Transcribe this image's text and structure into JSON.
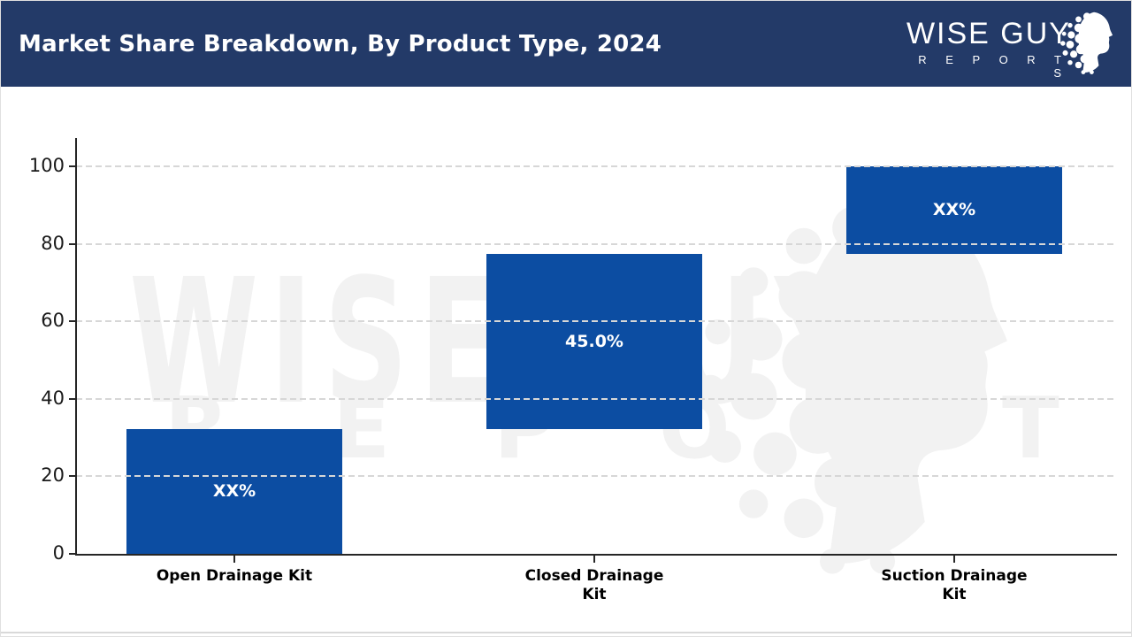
{
  "header": {
    "title": "Market Share Breakdown, By Product Type, 2024",
    "background": "#233a68",
    "title_color": "#ffffff",
    "logo": {
      "name": "WISE GUY",
      "sub": "R E P O R T S",
      "color": "#ffffff"
    }
  },
  "watermark": {
    "line1": "WISE GUY",
    "line2": "R E P O R T S",
    "color": "#f2f2f2"
  },
  "chart_data": {
    "type": "bar",
    "subtype": "waterfall-stacked",
    "title": "Market Share Breakdown, By Product Type, 2024",
    "xlabel": "",
    "ylabel": "",
    "ylim": [
      0,
      107
    ],
    "yticks": [
      0,
      20,
      40,
      60,
      80,
      100
    ],
    "grid": {
      "axis": "y",
      "style": "dashed",
      "color": "#d7d7d7",
      "above_bars": true
    },
    "bar_color": "#0c4da2",
    "value_label_color": "#ffffff",
    "axis_color": "#262626",
    "legend": "none",
    "categories": [
      "Open Drainage Kit",
      "Closed Drainage Kit",
      "Suction Drainage Kit"
    ],
    "category_display_lines": [
      [
        "Open Drainage Kit"
      ],
      [
        "Closed Drainage",
        "Kit"
      ],
      [
        "Suction Drainage",
        "Kit"
      ]
    ],
    "segments": [
      {
        "category": "Open Drainage Kit",
        "start": 0,
        "end": 32.3,
        "value_estimate": 32.3,
        "label": "XX%"
      },
      {
        "category": "Closed Drainage Kit",
        "start": 32.3,
        "end": 77.3,
        "value": 45.0,
        "label": "45.0%"
      },
      {
        "category": "Suction Drainage Kit",
        "start": 77.5,
        "end": 100,
        "value_estimate": 22.5,
        "label": "XX%"
      }
    ]
  }
}
